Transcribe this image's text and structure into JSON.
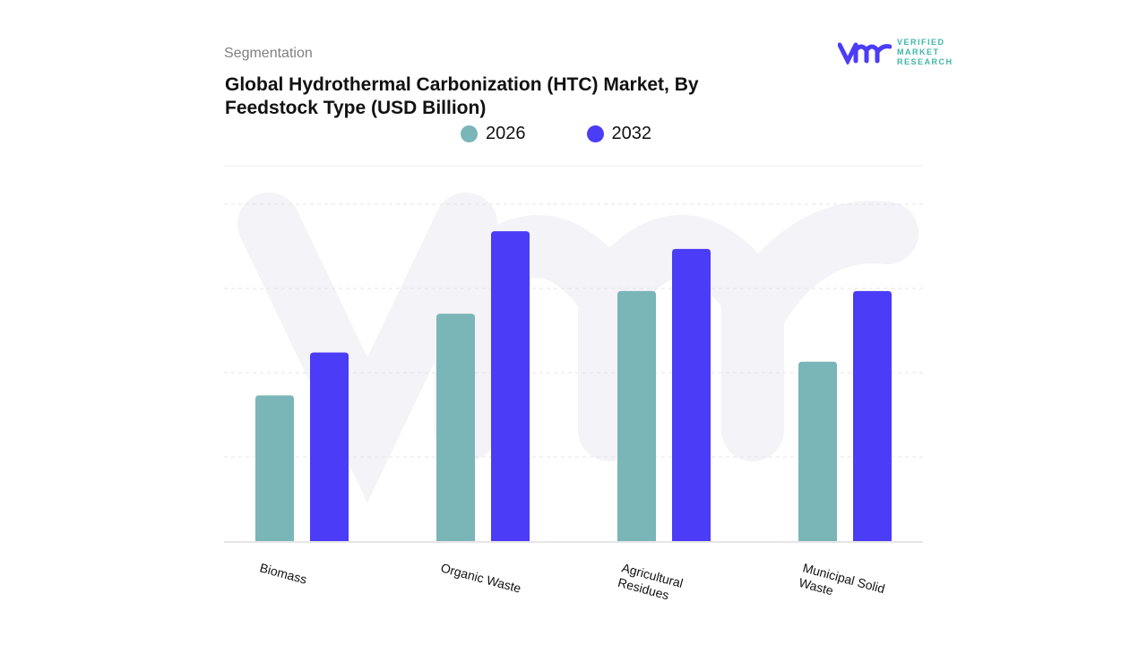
{
  "header": {
    "section": "Segmentation",
    "title_line1": "Global Hydrothermal Carbonization (HTC) Market, By",
    "title_line2": "Feedstock Type (USD Billion)"
  },
  "logo": {
    "line1": "VERIFIED",
    "line2": "MARKET",
    "line3": "RESEARCH",
    "mark": "vmr"
  },
  "colors": {
    "s2026": "#7ab5b8",
    "s2032": "#4b3cf7",
    "grid": "#e6e6e6"
  },
  "chart_data": {
    "type": "bar",
    "title": "Global Hydrothermal Carbonization (HTC) Market, By Feedstock Type (USD Billion)",
    "categories": [
      "Biomass",
      "Organic Waste",
      "Agricultural Residues",
      "Municipal Solid Waste"
    ],
    "series": [
      {
        "name": "2026",
        "values": [
          1.73,
          2.7,
          2.97,
          2.13
        ]
      },
      {
        "name": "2032",
        "values": [
          2.24,
          3.68,
          3.47,
          2.97
        ]
      }
    ],
    "xlabel": "",
    "ylabel": "",
    "ylim": [
      0,
      4
    ],
    "grid": true,
    "legend": "top-center",
    "note": "values are relative estimates; no axis ticks shown"
  }
}
